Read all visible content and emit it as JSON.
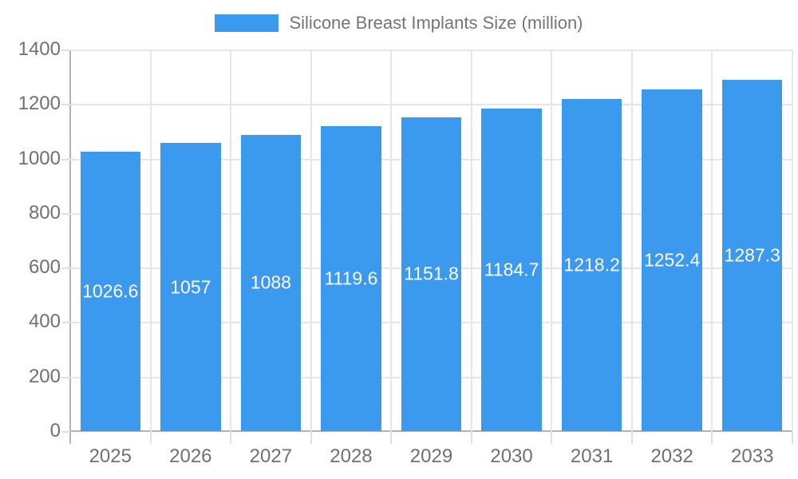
{
  "legend": {
    "label": "Silicone Breast Implants Size (million)"
  },
  "chart_data": {
    "type": "bar",
    "title": "Silicone Breast Implants Size (million)",
    "categories": [
      "2025",
      "2026",
      "2027",
      "2028",
      "2029",
      "2030",
      "2031",
      "2032",
      "2033"
    ],
    "values": [
      1026.6,
      1057,
      1088,
      1119.6,
      1151.8,
      1184.7,
      1218.2,
      1252.4,
      1287.3
    ],
    "value_labels": [
      "1026.6",
      "1057",
      "1088",
      "1119.6",
      "1151.8",
      "1184.7",
      "1218.2",
      "1252.4",
      "1287.3"
    ],
    "xlabel": "",
    "ylabel": "",
    "ylim": [
      0,
      1400
    ],
    "yticks": [
      0,
      200,
      400,
      600,
      800,
      1000,
      1200,
      1400
    ],
    "grid": true,
    "legend_position": "top",
    "colors": {
      "bar_fill": "#3b99ee",
      "value_label_text": "#ffffff",
      "axis_text": "#707070",
      "legend_text": "#757575",
      "grid_line": "#e6e6e6",
      "axis_line": "#b3b3b3"
    }
  }
}
